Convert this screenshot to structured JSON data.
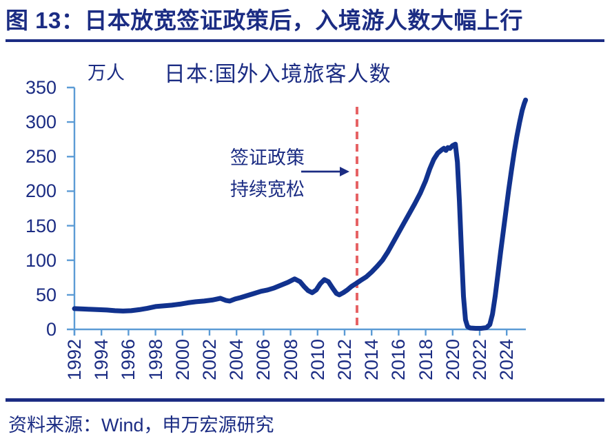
{
  "header": {
    "title": "图 13：日本放宽签证政策后，入境游人数大幅上行"
  },
  "footer": {
    "source": "资料来源：Wind，申万宏源研究"
  },
  "colors": {
    "navy": "#1B2C83",
    "series": "#11328E",
    "axis": "#5B9BD5",
    "event_line": "#E66365"
  },
  "chart_data": {
    "type": "line",
    "title": "日本:国外入境旅客人数",
    "unit_label": "万人",
    "xlabel": "",
    "ylabel": "万人",
    "x_ticks": [
      1992,
      1994,
      1996,
      1998,
      2000,
      2002,
      2004,
      2006,
      2008,
      2010,
      2012,
      2014,
      2016,
      2018,
      2020,
      2022,
      2024
    ],
    "y_ticks": [
      0,
      50,
      100,
      150,
      200,
      250,
      300,
      350
    ],
    "x_range": [
      1992,
      2025.45
    ],
    "ylim": [
      0,
      350
    ],
    "grid": false,
    "legend_position": "none",
    "event_line": {
      "year": 2012.92,
      "style": "dashed"
    },
    "annotation": {
      "line1": "签证政策",
      "line2": "持续宽松"
    },
    "series": [
      {
        "name": "日本:国外入境旅客人数",
        "points": [
          [
            1992.0,
            30
          ],
          [
            1992.6,
            29.5
          ],
          [
            1993.2,
            29
          ],
          [
            1993.8,
            28.5
          ],
          [
            1994.4,
            28
          ],
          [
            1995.0,
            27
          ],
          [
            1995.6,
            26.5
          ],
          [
            1996.2,
            27
          ],
          [
            1996.8,
            28.5
          ],
          [
            1997.4,
            30.5
          ],
          [
            1998.0,
            33
          ],
          [
            1998.6,
            34
          ],
          [
            1999.2,
            35
          ],
          [
            1999.8,
            36.5
          ],
          [
            2000.4,
            38.5
          ],
          [
            2001.0,
            40
          ],
          [
            2001.6,
            41
          ],
          [
            2002.2,
            42.5
          ],
          [
            2002.8,
            45
          ],
          [
            2003.2,
            42
          ],
          [
            2003.5,
            41
          ],
          [
            2003.9,
            44
          ],
          [
            2004.3,
            46
          ],
          [
            2004.8,
            49
          ],
          [
            2005.3,
            52
          ],
          [
            2005.8,
            55
          ],
          [
            2006.3,
            57
          ],
          [
            2006.8,
            60
          ],
          [
            2007.3,
            64
          ],
          [
            2007.8,
            68
          ],
          [
            2008.3,
            73
          ],
          [
            2008.7,
            69
          ],
          [
            2009.0,
            62
          ],
          [
            2009.3,
            56
          ],
          [
            2009.6,
            53
          ],
          [
            2009.9,
            57
          ],
          [
            2010.2,
            66
          ],
          [
            2010.5,
            72
          ],
          [
            2010.8,
            69
          ],
          [
            2011.1,
            60
          ],
          [
            2011.4,
            52
          ],
          [
            2011.6,
            50
          ],
          [
            2011.9,
            53
          ],
          [
            2012.2,
            57
          ],
          [
            2012.5,
            62
          ],
          [
            2012.9,
            67
          ],
          [
            2013.2,
            71
          ],
          [
            2013.6,
            76
          ],
          [
            2014.0,
            83
          ],
          [
            2014.4,
            91
          ],
          [
            2014.8,
            100
          ],
          [
            2015.2,
            112
          ],
          [
            2015.6,
            126
          ],
          [
            2016.0,
            140
          ],
          [
            2016.4,
            154
          ],
          [
            2016.8,
            168
          ],
          [
            2017.2,
            182
          ],
          [
            2017.6,
            197
          ],
          [
            2018.0,
            215
          ],
          [
            2018.3,
            232
          ],
          [
            2018.6,
            246
          ],
          [
            2018.9,
            255
          ],
          [
            2019.2,
            260
          ],
          [
            2019.35,
            262
          ],
          [
            2019.5,
            259
          ],
          [
            2019.65,
            263
          ],
          [
            2019.8,
            262
          ],
          [
            2020.0,
            266
          ],
          [
            2020.2,
            268
          ],
          [
            2020.35,
            242
          ],
          [
            2020.5,
            185
          ],
          [
            2020.65,
            115
          ],
          [
            2020.8,
            48
          ],
          [
            2020.95,
            14
          ],
          [
            2021.1,
            4
          ],
          [
            2021.3,
            2
          ],
          [
            2021.7,
            1.5
          ],
          [
            2022.1,
            1.5
          ],
          [
            2022.5,
            2.5
          ],
          [
            2022.75,
            7
          ],
          [
            2022.95,
            22
          ],
          [
            2023.15,
            48
          ],
          [
            2023.35,
            80
          ],
          [
            2023.55,
            112
          ],
          [
            2023.75,
            142
          ],
          [
            2023.95,
            172
          ],
          [
            2024.15,
            202
          ],
          [
            2024.35,
            230
          ],
          [
            2024.55,
            256
          ],
          [
            2024.75,
            279
          ],
          [
            2024.95,
            299
          ],
          [
            2025.15,
            317
          ],
          [
            2025.3,
            327
          ],
          [
            2025.4,
            332
          ]
        ]
      }
    ]
  }
}
